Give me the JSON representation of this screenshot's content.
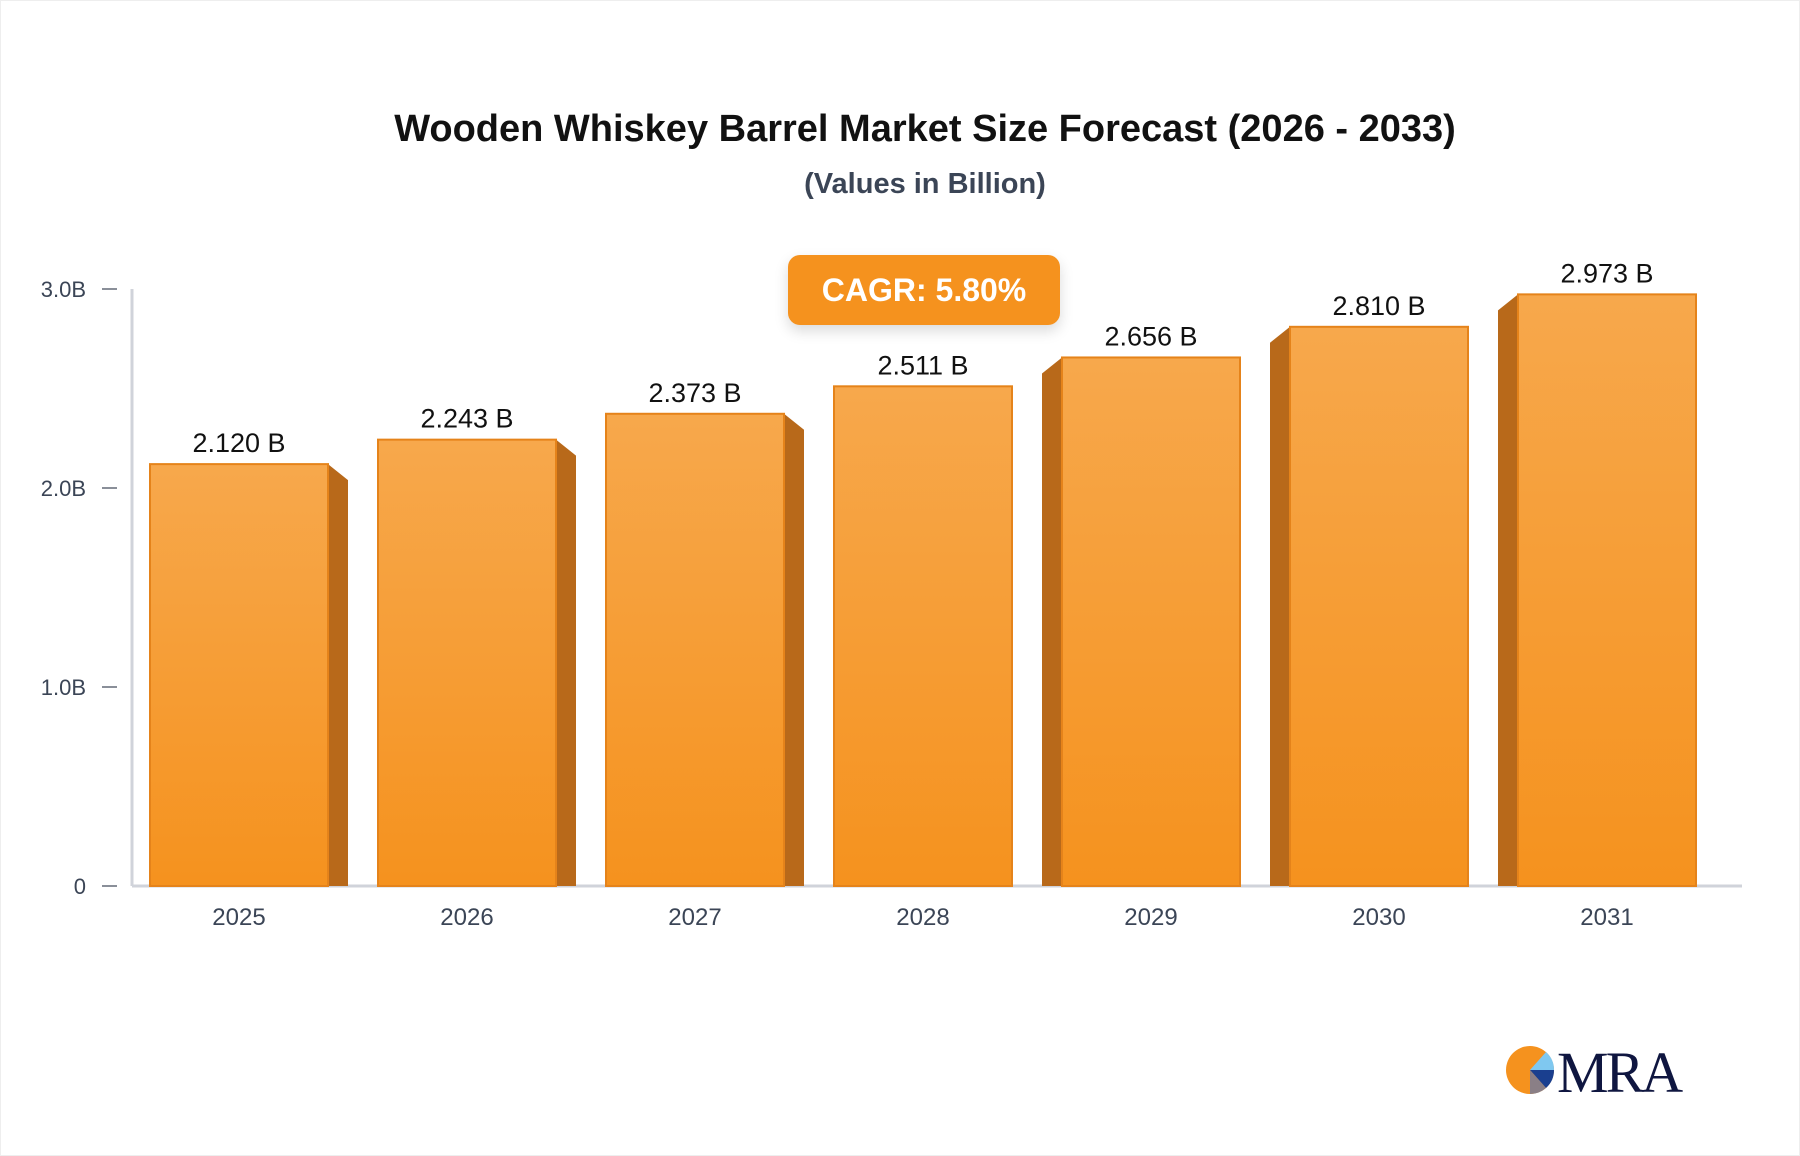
{
  "chart_data": {
    "type": "bar",
    "title": "Wooden Whiskey Barrel Market Size Forecast (2026 - 2033)",
    "subtitle": "(Values in Billion)",
    "categories": [
      "2025",
      "2026",
      "2027",
      "2028",
      "2029",
      "2030",
      "2031"
    ],
    "values": [
      2.12,
      2.243,
      2.373,
      2.511,
      2.656,
      2.81,
      2.973
    ],
    "data_labels": [
      "2.120 B",
      "2.243 B",
      "2.373 B",
      "2.511 B",
      "2.656 B",
      "2.810 B",
      "2.973 B"
    ],
    "yticks": [
      {
        "v": 0,
        "label": "0"
      },
      {
        "v": 1,
        "label": "1.0B"
      },
      {
        "v": 2,
        "label": "2.0B"
      },
      {
        "v": 3,
        "label": "3.0B"
      }
    ],
    "ylim": [
      0,
      3
    ],
    "grid": false,
    "annotation": "CAGR: 5.80%",
    "colors": {
      "bar": "#f5921e",
      "bar_top": "#f7a84c",
      "side": "#b8691a"
    }
  },
  "logo": {
    "text": "MRA"
  }
}
